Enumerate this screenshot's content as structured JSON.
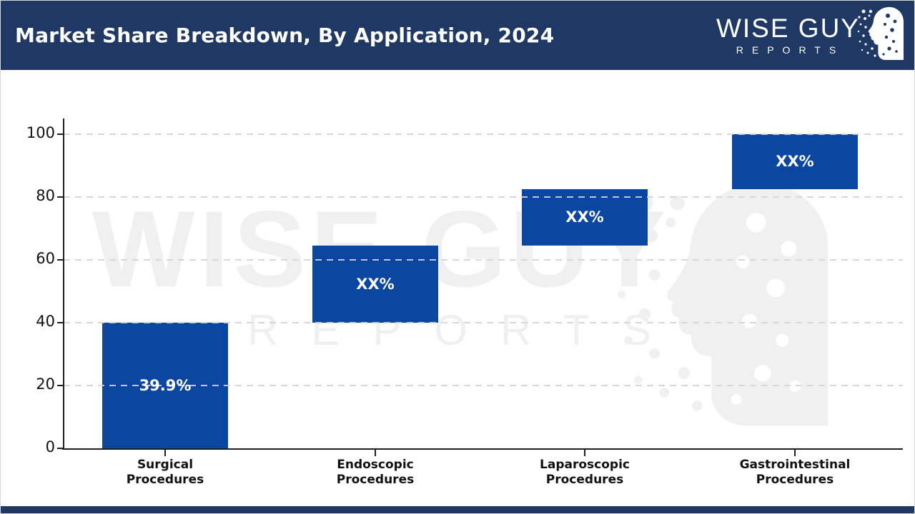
{
  "header": {
    "title": "Market Share Breakdown, By Application, 2024"
  },
  "logo": {
    "line1": "WISE GUY",
    "line2": "REPORTS"
  },
  "watermark": {
    "line1": "WISE GUY",
    "line2": "REPORTS"
  },
  "colors": {
    "header_bg": "#1f3864",
    "footer_bg": "#1f3864",
    "bar": "#0b47a0",
    "axis": "#1f1f1f",
    "grid": "#d4d4d4",
    "watermark": "#f0f0f1",
    "title_text": "#ffffff",
    "bar_label_text": "#ffffff"
  },
  "chart_data": {
    "type": "bar",
    "subtype": "floating_segment_breakdown",
    "title": "Market Share Breakdown, By Application, 2024",
    "categories": [
      "Surgical Procedures",
      "Endoscopic Procedures",
      "Laparoscopic Procedures",
      "Gastrointestinal Procedures"
    ],
    "category_lines": [
      [
        "Surgical",
        "Procedures"
      ],
      [
        "Endoscopic",
        "Procedures"
      ],
      [
        "Laparoscopic",
        "Procedures"
      ],
      [
        "Gastrointestinal",
        "Procedures"
      ]
    ],
    "segments": [
      {
        "category": "Surgical Procedures",
        "start": 0,
        "end": 40,
        "label": "39.9%"
      },
      {
        "category": "Endoscopic Procedures",
        "start": 40,
        "end": 64.5,
        "label": "XX%"
      },
      {
        "category": "Laparoscopic Procedures",
        "start": 64.5,
        "end": 82.6,
        "label": "XX%"
      },
      {
        "category": "Gastrointestinal Procedures",
        "start": 82.6,
        "end": 100,
        "label": "XX%"
      }
    ],
    "yticks": [
      0,
      20,
      40,
      60,
      80,
      100
    ],
    "ylim": [
      0,
      105
    ],
    "xlabel": "",
    "ylabel": "",
    "grid": "horizontal dashed, drawn over bars",
    "legend": "none",
    "bar_color": "#0b47a0",
    "label_color": "#ffffff"
  }
}
